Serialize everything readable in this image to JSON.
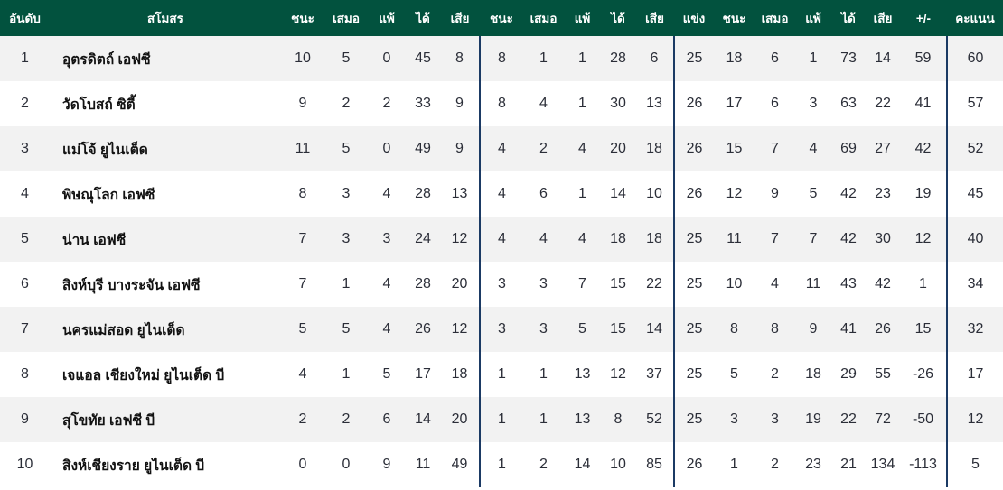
{
  "colors": {
    "header_bg": "#02523e",
    "header_text": "#ffffff",
    "divider": "#1b3a64",
    "row_alt_bg": "#f2f2f2",
    "row_bg": "#ffffff",
    "number_text": "#2b2e38",
    "club_text": "#121212"
  },
  "chart_data": {
    "type": "table",
    "title": "Thai football league standings table (rank, club, home record, away record, overall record, goal difference, points)",
    "columns": [
      "อันดับ",
      "สโมสร",
      "ชนะ",
      "เสมอ",
      "แพ้",
      "ได้",
      "เสีย",
      "ชนะ",
      "เสมอ",
      "แพ้",
      "ได้",
      "เสีย",
      "แข่ง",
      "ชนะ",
      "เสมอ",
      "แพ้",
      "ได้",
      "เสีย",
      "+/-",
      "คะแนน"
    ],
    "column_groups": [
      "rank",
      "club",
      "record-1",
      "record-1",
      "record-1",
      "record-1",
      "record-1",
      "record-2",
      "record-2",
      "record-2",
      "record-2",
      "record-2",
      "total",
      "total",
      "total",
      "total",
      "total",
      "total",
      "total",
      "points"
    ],
    "rows": [
      [
        "1",
        "อุตรดิตถ์ เอฟซี",
        "10",
        "5",
        "0",
        "45",
        "8",
        "8",
        "1",
        "1",
        "28",
        "6",
        "25",
        "18",
        "6",
        "1",
        "73",
        "14",
        "59",
        "60"
      ],
      [
        "2",
        "วัดโบสถ์ ซิตี้",
        "9",
        "2",
        "2",
        "33",
        "9",
        "8",
        "4",
        "1",
        "30",
        "13",
        "26",
        "17",
        "6",
        "3",
        "63",
        "22",
        "41",
        "57"
      ],
      [
        "3",
        "แม่โจ้ ยูไนเต็ด",
        "11",
        "5",
        "0",
        "49",
        "9",
        "4",
        "2",
        "4",
        "20",
        "18",
        "26",
        "15",
        "7",
        "4",
        "69",
        "27",
        "42",
        "52"
      ],
      [
        "4",
        "พิษณุโลก เอฟซี",
        "8",
        "3",
        "4",
        "28",
        "13",
        "4",
        "6",
        "1",
        "14",
        "10",
        "26",
        "12",
        "9",
        "5",
        "42",
        "23",
        "19",
        "45"
      ],
      [
        "5",
        "น่าน เอฟซี",
        "7",
        "3",
        "3",
        "24",
        "12",
        "4",
        "4",
        "4",
        "18",
        "18",
        "25",
        "11",
        "7",
        "7",
        "42",
        "30",
        "12",
        "40"
      ],
      [
        "6",
        "สิงห์บุรี บางระจัน เอฟซี",
        "7",
        "1",
        "4",
        "28",
        "20",
        "3",
        "3",
        "7",
        "15",
        "22",
        "25",
        "10",
        "4",
        "11",
        "43",
        "42",
        "1",
        "34"
      ],
      [
        "7",
        "นครแม่สอด ยูไนเต็ด",
        "5",
        "5",
        "4",
        "26",
        "12",
        "3",
        "3",
        "5",
        "15",
        "14",
        "25",
        "8",
        "8",
        "9",
        "41",
        "26",
        "15",
        "32"
      ],
      [
        "8",
        "เจแอล เชียงใหม่ ยูไนเต็ด บี",
        "4",
        "1",
        "5",
        "17",
        "18",
        "1",
        "1",
        "13",
        "12",
        "37",
        "25",
        "5",
        "2",
        "18",
        "29",
        "55",
        "-26",
        "17"
      ],
      [
        "9",
        "สุโขทัย เอฟซี บี",
        "2",
        "2",
        "6",
        "14",
        "20",
        "1",
        "1",
        "13",
        "8",
        "52",
        "25",
        "3",
        "3",
        "19",
        "22",
        "72",
        "-50",
        "12"
      ],
      [
        "10",
        "สิงห์เชียงราย ยูไนเต็ด บี",
        "0",
        "0",
        "9",
        "11",
        "49",
        "1",
        "2",
        "14",
        "10",
        "85",
        "26",
        "1",
        "2",
        "23",
        "21",
        "134",
        "-113",
        "5"
      ]
    ]
  }
}
